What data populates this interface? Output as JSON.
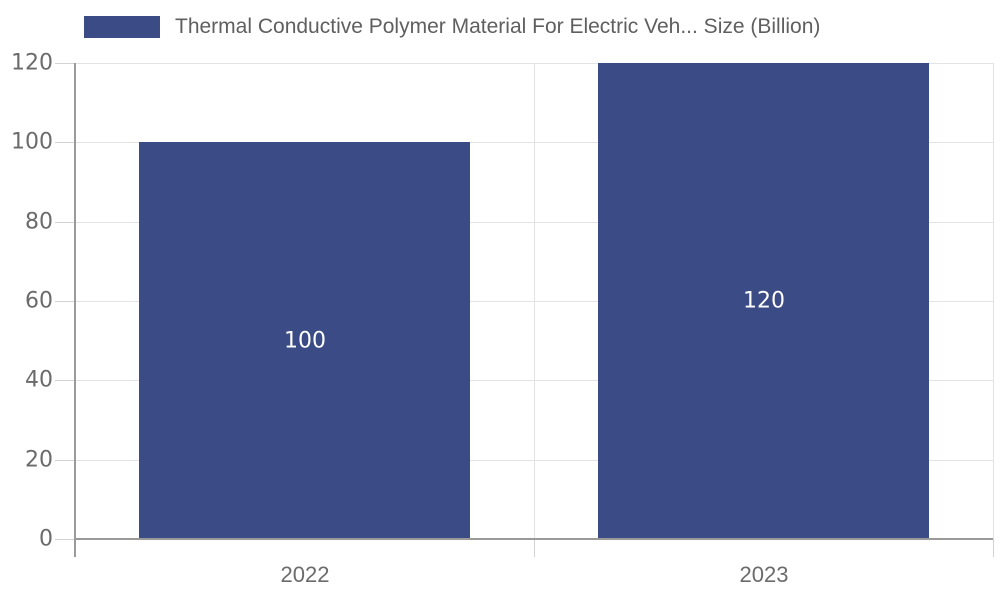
{
  "legend": {
    "label": "Thermal Conductive Polymer Material For Electric Veh... Size (Billion)"
  },
  "colors": {
    "bar": "#3a4b85",
    "axis": "#9a9a9a",
    "grid": "#e3e3e3",
    "tick": "#d2d2d2",
    "axis_label": "#6b6b6b",
    "bar_label": "#ffffff",
    "legend_text": "#5f5f5f",
    "background": "#ffffff"
  },
  "chart_data": {
    "type": "bar",
    "categories": [
      "2022",
      "2023"
    ],
    "series": [
      {
        "name": "Thermal Conductive Polymer Material For Electric Veh... Size (Billion)",
        "values": [
          100,
          120
        ]
      }
    ],
    "bar_value_labels": [
      "100",
      "120"
    ],
    "title": "",
    "xlabel": "",
    "ylabel": "",
    "ylim": [
      0,
      120
    ],
    "yticks": [
      0,
      20,
      40,
      60,
      80,
      100,
      120
    ],
    "grid": true,
    "legend_position": "top-left"
  }
}
